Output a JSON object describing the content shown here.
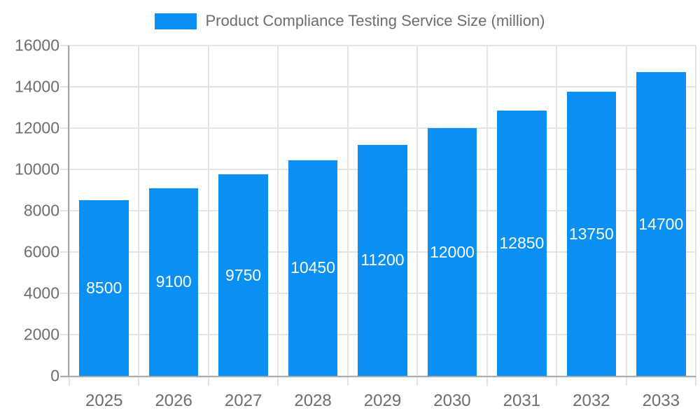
{
  "legend": {
    "label": "Product Compliance Testing Service Size (million)"
  },
  "chart_data": {
    "type": "bar",
    "title": "Product Compliance Testing Service Size (million)",
    "categories": [
      "2025",
      "2026",
      "2027",
      "2028",
      "2029",
      "2030",
      "2031",
      "2032",
      "2033"
    ],
    "values": [
      8500,
      9100,
      9750,
      10450,
      11200,
      12000,
      12850,
      13750,
      14700
    ],
    "yticks": [
      0,
      2000,
      4000,
      6000,
      8000,
      10000,
      12000,
      14000,
      16000
    ],
    "ylim": [
      0,
      16000
    ],
    "xlabel": "",
    "ylabel": "",
    "grid": true,
    "legend_position": "top",
    "colors": {
      "bar": "#0990f2",
      "bar_value_label": "#ffffff",
      "grid": "#e4e4e4",
      "axis": "#a6a6a6",
      "tick_text": "#6d6d6d",
      "background": "#ffffff"
    }
  }
}
